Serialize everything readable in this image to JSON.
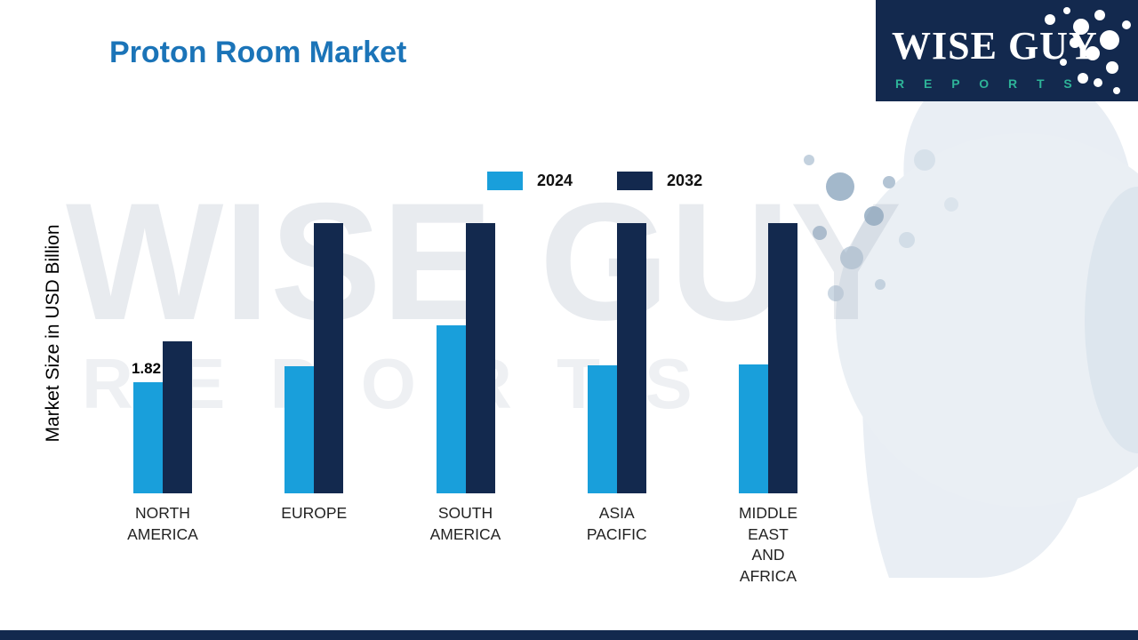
{
  "page": {
    "title": "Proton Room Market"
  },
  "logo": {
    "name": "WISE GUY",
    "sub": "R E P O R T S"
  },
  "watermark": {
    "line1": "WISE GUY",
    "line2": "R E P O R T S"
  },
  "colors": {
    "title_blue": "#1b74b8",
    "bar_2024": "#199fdb",
    "bar_2032": "#13294e",
    "navy": "#13294e",
    "logo_sub_green": "#2eb398"
  },
  "chart_data": {
    "type": "bar",
    "title": "Proton Room Market",
    "xlabel": "",
    "ylabel": "Market Size in USD Billion",
    "ylim": [
      0,
      4.5
    ],
    "grid": false,
    "legend_position": "top",
    "categories": [
      "NORTH AMERICA",
      "EUROPE",
      "SOUTH AMERICA",
      "ASIA PACIFIC",
      "MIDDLE EAST AND AFRICA"
    ],
    "series": [
      {
        "name": "2024",
        "color": "#199fdb",
        "values": [
          1.82,
          2.08,
          2.74,
          2.09,
          2.1
        ]
      },
      {
        "name": "2032",
        "color": "#13294e",
        "values": [
          2.48,
          4.41,
          4.41,
          4.41,
          4.41
        ]
      }
    ],
    "data_labels": [
      {
        "series": "2024",
        "category": "NORTH AMERICA",
        "text": "1.82"
      }
    ]
  }
}
